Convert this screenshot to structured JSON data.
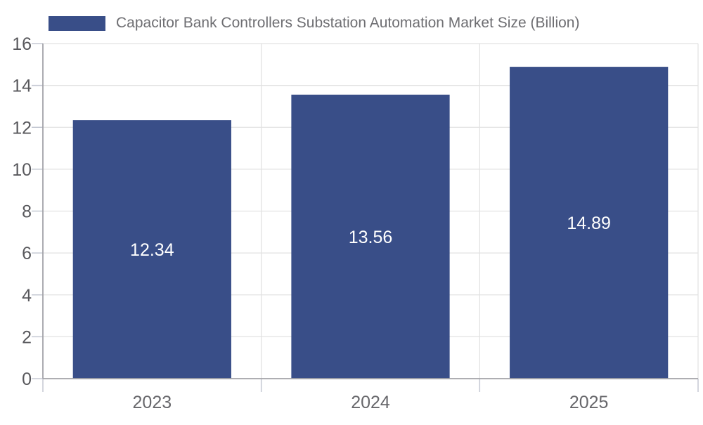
{
  "chart_data": {
    "type": "bar",
    "title": "",
    "categories": [
      "2023",
      "2024",
      "2025"
    ],
    "values": [
      12.34,
      13.56,
      14.89
    ],
    "bar_labels": [
      "12.34",
      "13.56",
      "14.89"
    ],
    "legend": [
      "Capacitor Bank Controllers Substation Automation Market Size (Billion)"
    ],
    "legend_position": "top-left",
    "xlabel": "",
    "ylabel": "",
    "ylim": [
      0,
      16
    ],
    "ytick_labels": [
      "0",
      "2",
      "4",
      "6",
      "8",
      "10",
      "12",
      "14",
      "16"
    ],
    "grid": true,
    "bar_width_fraction": 0.725
  },
  "colors": {
    "bar": "#394E88",
    "bar_label": "#FFFFFF",
    "gridline": "#E2E2E2",
    "axis_line": "#A3A3A9",
    "tick_mark": "#C5C9D3",
    "tick_label": "#58585C",
    "category_label": "#67676B",
    "legend_text": "#6E6E72",
    "background": "#FFFFFF"
  }
}
